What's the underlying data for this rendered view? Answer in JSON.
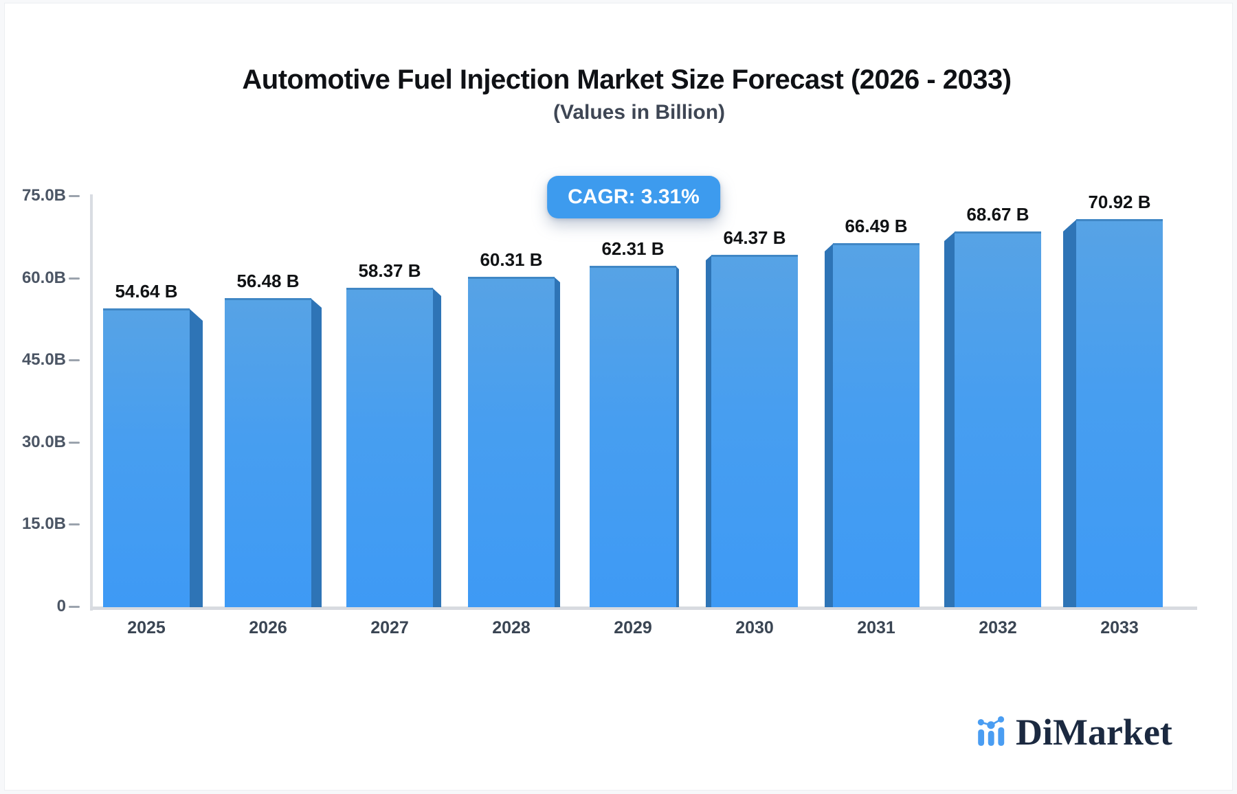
{
  "page": {
    "background_color": "#f7f8fa",
    "card_background": "#ffffff"
  },
  "header": {
    "title": "Automotive Fuel Injection Market Size Forecast (2026 - 2033)",
    "subtitle": "(Values in Billion)"
  },
  "badge": {
    "label": "CAGR: 3.31%",
    "background": "#3d9bee",
    "text_color": "#ffffff"
  },
  "chart_data": {
    "type": "bar",
    "title": "Automotive Fuel Injection Market Size Forecast (2026 - 2033)",
    "subtitle": "(Values in Billion)",
    "categories": [
      "2025",
      "2026",
      "2027",
      "2028",
      "2029",
      "2030",
      "2031",
      "2032",
      "2033"
    ],
    "values": [
      54.64,
      56.48,
      58.37,
      60.31,
      62.31,
      64.37,
      66.49,
      68.67,
      70.92
    ],
    "value_labels": [
      "54.64 B",
      "56.48 B",
      "58.37 B",
      "60.31 B",
      "62.31 B",
      "64.37 B",
      "66.49 B",
      "68.67 B",
      "70.92 B"
    ],
    "unit": "Billion",
    "cagr": "3.31%",
    "xlabel": "",
    "ylabel": "",
    "ylim": [
      0,
      75
    ],
    "yticks": [
      0,
      15,
      30,
      45,
      60,
      75
    ],
    "ytick_labels": [
      "0",
      "15.0B",
      "30.0B",
      "45.0B",
      "60.0B",
      "75.0B"
    ],
    "grid": false,
    "legend": false,
    "bar_color_top": "#57a3e5",
    "bar_color_bottom": "#3e9af5",
    "bar_side_color": "#2e74b6",
    "axis_color": "#d9dce2",
    "tick_text_color": "#4b5564"
  },
  "footer": {
    "brand": "DiMarket",
    "brand_color": "#1b2940",
    "logo_icon": "mini-bar-line-chart-icon",
    "logo_icon_color": "#4a9df2"
  }
}
